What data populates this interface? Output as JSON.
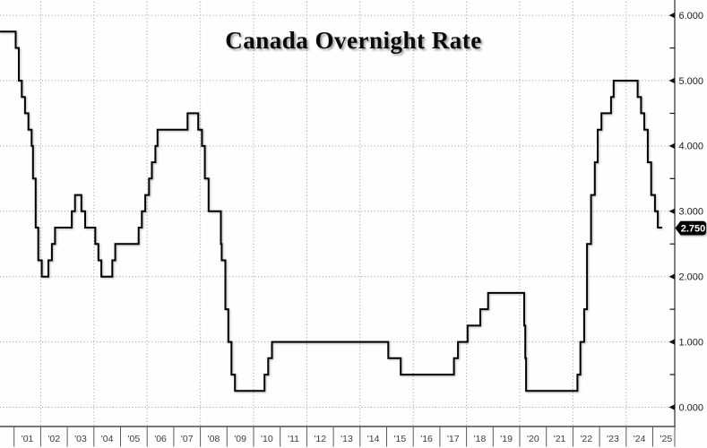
{
  "chart_data": {
    "type": "line",
    "style": "step-after",
    "title": "Canada Overnight Rate",
    "xlabel": "",
    "ylabel": "",
    "grid": "dotted",
    "legend": "none",
    "axis_position": "right",
    "ylim": [
      0,
      6.25
    ],
    "x_domain": [
      2000.45,
      2025.82
    ],
    "y_ticks": [
      {
        "value": 0,
        "label": "0.000"
      },
      {
        "value": 1,
        "label": "1.000"
      },
      {
        "value": 2,
        "label": "2.000"
      },
      {
        "value": 3,
        "label": "3.000"
      },
      {
        "value": 4,
        "label": "4.000"
      },
      {
        "value": 5,
        "label": "5.000"
      },
      {
        "value": 6,
        "label": "6.000"
      }
    ],
    "y_minor_ticks": [
      0.5,
      1.5,
      2.5,
      3.5,
      4.5,
      5.5
    ],
    "x_ticks": [
      {
        "year": 2001,
        "label": "'01"
      },
      {
        "year": 2002,
        "label": "'02"
      },
      {
        "year": 2003,
        "label": "'03"
      },
      {
        "year": 2004,
        "label": "'04"
      },
      {
        "year": 2005,
        "label": "'05"
      },
      {
        "year": 2006,
        "label": "'06"
      },
      {
        "year": 2007,
        "label": "'07"
      },
      {
        "year": 2008,
        "label": "'08"
      },
      {
        "year": 2009,
        "label": "'09"
      },
      {
        "year": 2010,
        "label": "'10"
      },
      {
        "year": 2011,
        "label": "'11"
      },
      {
        "year": 2012,
        "label": "'12"
      },
      {
        "year": 2013,
        "label": "'13"
      },
      {
        "year": 2014,
        "label": "'14"
      },
      {
        "year": 2015,
        "label": "'15"
      },
      {
        "year": 2016,
        "label": "'16"
      },
      {
        "year": 2017,
        "label": "'17"
      },
      {
        "year": 2018,
        "label": "'18"
      },
      {
        "year": 2019,
        "label": "'19"
      },
      {
        "year": 2020,
        "label": "'20"
      },
      {
        "year": 2021,
        "label": "'21"
      },
      {
        "year": 2022,
        "label": "'22"
      },
      {
        "year": 2023,
        "label": "'23"
      },
      {
        "year": 2024,
        "label": "'24"
      },
      {
        "year": 2025,
        "label": "'25"
      }
    ],
    "x_gridline_years": [
      2002,
      2004,
      2006,
      2008,
      2010,
      2012,
      2014,
      2016,
      2018,
      2020,
      2022,
      2024
    ],
    "series": [
      {
        "name": "Canada Overnight Rate",
        "points": [
          [
            2000.45,
            5.75
          ],
          [
            2001.06,
            5.5
          ],
          [
            2001.18,
            5.0
          ],
          [
            2001.29,
            4.75
          ],
          [
            2001.41,
            4.5
          ],
          [
            2001.54,
            4.25
          ],
          [
            2001.66,
            4.0
          ],
          [
            2001.71,
            3.5
          ],
          [
            2001.81,
            2.75
          ],
          [
            2001.91,
            2.25
          ],
          [
            2002.04,
            2.0
          ],
          [
            2002.29,
            2.25
          ],
          [
            2002.42,
            2.5
          ],
          [
            2002.54,
            2.75
          ],
          [
            2003.17,
            3.0
          ],
          [
            2003.29,
            3.25
          ],
          [
            2003.53,
            3.0
          ],
          [
            2003.67,
            2.75
          ],
          [
            2004.05,
            2.5
          ],
          [
            2004.17,
            2.25
          ],
          [
            2004.28,
            2.0
          ],
          [
            2004.69,
            2.25
          ],
          [
            2004.8,
            2.5
          ],
          [
            2005.68,
            2.75
          ],
          [
            2005.8,
            3.0
          ],
          [
            2005.93,
            3.25
          ],
          [
            2006.07,
            3.5
          ],
          [
            2006.18,
            3.75
          ],
          [
            2006.31,
            4.0
          ],
          [
            2006.39,
            4.25
          ],
          [
            2007.52,
            4.5
          ],
          [
            2007.92,
            4.25
          ],
          [
            2008.06,
            4.0
          ],
          [
            2008.17,
            3.5
          ],
          [
            2008.31,
            3.0
          ],
          [
            2008.77,
            2.5
          ],
          [
            2008.8,
            2.25
          ],
          [
            2008.94,
            1.5
          ],
          [
            2009.05,
            1.0
          ],
          [
            2009.17,
            0.5
          ],
          [
            2009.3,
            0.25
          ],
          [
            2010.41,
            0.5
          ],
          [
            2010.55,
            0.75
          ],
          [
            2010.69,
            1.0
          ],
          [
            2015.06,
            0.75
          ],
          [
            2015.53,
            0.5
          ],
          [
            2017.53,
            0.75
          ],
          [
            2017.68,
            1.0
          ],
          [
            2018.04,
            1.25
          ],
          [
            2018.52,
            1.5
          ],
          [
            2018.81,
            1.75
          ],
          [
            2020.17,
            1.25
          ],
          [
            2020.21,
            0.75
          ],
          [
            2020.24,
            0.25
          ],
          [
            2022.17,
            0.5
          ],
          [
            2022.28,
            1.0
          ],
          [
            2022.42,
            1.5
          ],
          [
            2022.53,
            2.5
          ],
          [
            2022.68,
            3.25
          ],
          [
            2022.82,
            3.75
          ],
          [
            2022.93,
            4.25
          ],
          [
            2023.07,
            4.5
          ],
          [
            2023.43,
            4.75
          ],
          [
            2023.53,
            5.0
          ],
          [
            2024.43,
            4.75
          ],
          [
            2024.56,
            4.5
          ],
          [
            2024.68,
            4.25
          ],
          [
            2024.81,
            3.75
          ],
          [
            2024.94,
            3.25
          ],
          [
            2025.08,
            3.0
          ],
          [
            2025.19,
            2.75
          ]
        ]
      }
    ],
    "series_end_x": 2025.35,
    "last_point": {
      "value": 2.75,
      "label": "2.750"
    },
    "colors": {
      "background": "#fefefe",
      "line": "#000000",
      "grid": "#9a9a9a",
      "axis": "#4a4a4a",
      "tick_label": "#1a1a1a",
      "year_label": "#3c3c3c",
      "tick_mark": "#141414",
      "badge_bg": "#000000",
      "badge_text": "#ffffff",
      "title": "#0a0a0a"
    }
  }
}
